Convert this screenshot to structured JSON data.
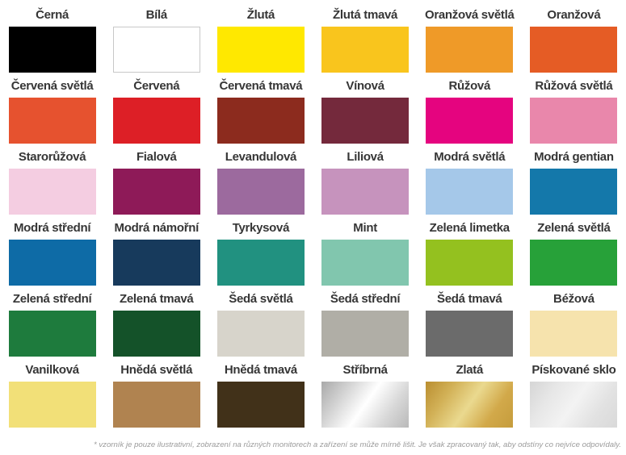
{
  "page": {
    "background": "#ffffff",
    "label_color": "#363636"
  },
  "palette": {
    "columns": 6,
    "swatches": [
      {
        "name": "Černá",
        "color": "#000000"
      },
      {
        "name": "Bílá",
        "color": "#ffffff",
        "border": "#c8c8c8"
      },
      {
        "name": "Žlutá",
        "color": "#ffe800"
      },
      {
        "name": "Žlutá tmavá",
        "color": "#f9c51d"
      },
      {
        "name": "Oranžová světlá",
        "color": "#ef9a28"
      },
      {
        "name": "Oranžová",
        "color": "#e55c25"
      },
      {
        "name": "Červená světlá",
        "color": "#e6522f"
      },
      {
        "name": "Červená",
        "color": "#dd1f26"
      },
      {
        "name": "Červená tmavá",
        "color": "#8c2b1e"
      },
      {
        "name": "Vínová",
        "color": "#74293c"
      },
      {
        "name": "Růžová",
        "color": "#e5047f"
      },
      {
        "name": "Růžová světlá",
        "color": "#e987ab"
      },
      {
        "name": "Starorůžová",
        "color": "#f4cde1"
      },
      {
        "name": "Fialová",
        "color": "#8e1a58"
      },
      {
        "name": "Levandulová",
        "color": "#9c6a9e"
      },
      {
        "name": "Liliová",
        "color": "#c693bd"
      },
      {
        "name": "Modrá světlá",
        "color": "#a5c8e9"
      },
      {
        "name": "Modrá gentian",
        "color": "#1478aa"
      },
      {
        "name": "Modrá střední",
        "color": "#0e6ba6"
      },
      {
        "name": "Modrá námořní",
        "color": "#173a5c"
      },
      {
        "name": "Tyrkysová",
        "color": "#219180"
      },
      {
        "name": "Mint",
        "color": "#81c6ae"
      },
      {
        "name": "Zelená limetka",
        "color": "#94c11f"
      },
      {
        "name": "Zelená světlá",
        "color": "#27a139"
      },
      {
        "name": "Zelená střední",
        "color": "#1e7b3d"
      },
      {
        "name": "Zelená tmavá",
        "color": "#145229"
      },
      {
        "name": "Šedá světlá",
        "color": "#d7d4cb"
      },
      {
        "name": "Šedá střední",
        "color": "#b0aea6"
      },
      {
        "name": "Šedá tmavá",
        "color": "#6b6b6b"
      },
      {
        "name": "Béžová",
        "color": "#f6e3ad"
      },
      {
        "name": "Vanilková",
        "color": "#f2e078"
      },
      {
        "name": "Hnědá světlá",
        "color": "#b08350"
      },
      {
        "name": "Hnědá tmavá",
        "color": "#413119"
      },
      {
        "name": "Stříbrná",
        "finish": "metallic",
        "gradient": {
          "angle": "125deg",
          "stops": [
            "#a9a9a9",
            "#d3d3d3",
            "#ffffff",
            "#d8d8d8",
            "#b9b9b9"
          ]
        }
      },
      {
        "name": "Zlatá",
        "finish": "metallic",
        "gradient": {
          "angle": "125deg",
          "stops": [
            "#ba8e30",
            "#d2b157",
            "#ead98f",
            "#d2a94a",
            "#c59c3c"
          ]
        }
      },
      {
        "name": "Pískované sklo",
        "finish": "frosted",
        "gradient": {
          "angle": "125deg",
          "stops": [
            "#d5d5d5",
            "#e7e7e7",
            "#f3f3f3",
            "#e2e2e2",
            "#d9d9d9"
          ]
        }
      }
    ]
  },
  "footer": {
    "note": "* vzorník je pouze ilustrativní, zobrazení na různých monitorech a zařízení se může mírně lišit. Je však zpracovaný tak, aby odstíny co nejvíce odpovídaly."
  }
}
